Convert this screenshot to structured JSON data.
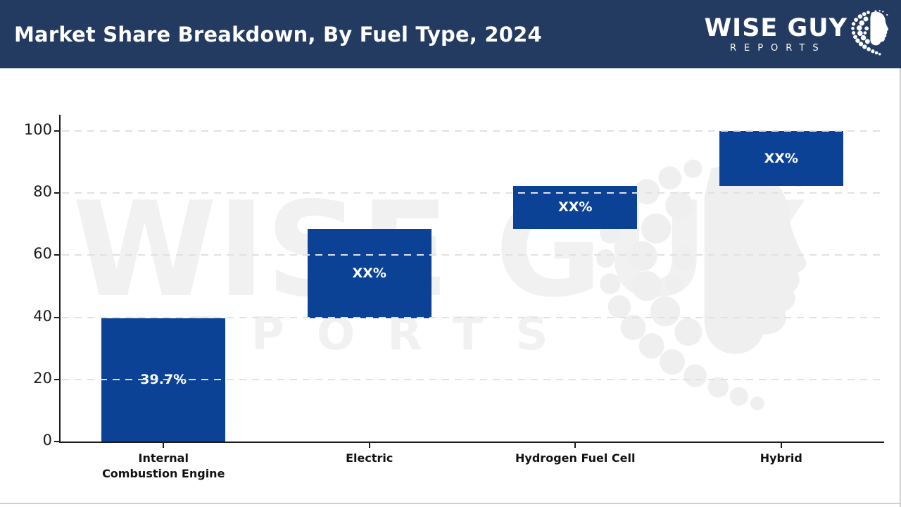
{
  "header": {
    "title": "Market Share Breakdown, By Fuel Type, 2024",
    "logo": {
      "name": "WISE GUY",
      "sub": "REPORTS"
    }
  },
  "watermark": {
    "line1": "WISE GUY",
    "line2": "REPORTS"
  },
  "chart_data": {
    "type": "bar",
    "subtype": "waterfall",
    "title": "Market Share Breakdown, By Fuel Type, 2024",
    "categories": [
      "Internal Combustion Engine",
      "Electric",
      "Hydrogen Fuel Cell",
      "Hybrid"
    ],
    "categories_display": [
      "Internal\nCombustion Engine",
      "Electric",
      "Hydrogen Fuel Cell",
      "Hybrid"
    ],
    "segments": [
      {
        "category": "Internal Combustion Engine",
        "start": 0,
        "end": 39.7,
        "label": "39.7%"
      },
      {
        "category": "Electric",
        "start": 39.7,
        "end": 68.5,
        "label": "XX%"
      },
      {
        "category": "Hydrogen Fuel Cell",
        "start": 68.5,
        "end": 82.3,
        "label": "XX%"
      },
      {
        "category": "Hybrid",
        "start": 82.3,
        "end": 100,
        "label": "XX%"
      }
    ],
    "ylim": [
      0,
      100
    ],
    "yticks": [
      0,
      20,
      40,
      60,
      80,
      100
    ],
    "xlabel": "",
    "ylabel": "",
    "grid": "horizontal dashed",
    "legend": null
  },
  "colors": {
    "header_bg": "#233a61",
    "bar": "#0b4296",
    "grid": "#e1e1e1",
    "axis": "#1a1a1a",
    "watermark": "#f1f1f1",
    "value_label": "#ffffff"
  }
}
